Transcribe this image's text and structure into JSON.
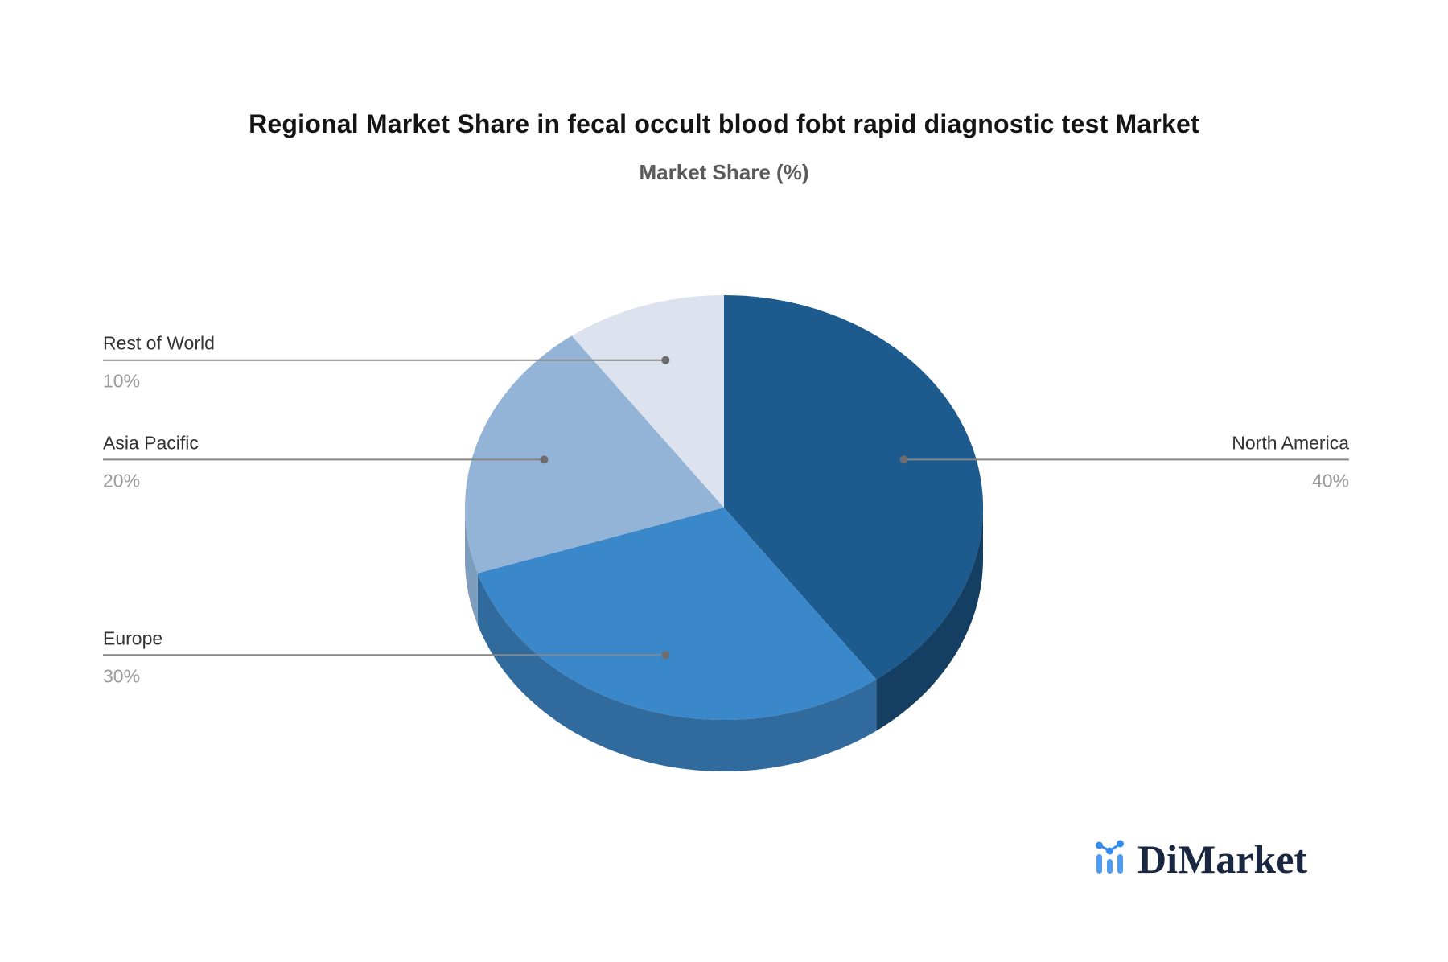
{
  "header": {
    "title": "Regional Market Share in fecal occult blood fobt rapid diagnostic test Market",
    "subtitle": "Market Share (%)"
  },
  "chart_data": {
    "type": "pie",
    "style": "3d-pie",
    "title": "Regional Market Share in fecal occult blood fobt rapid diagnostic test Market",
    "subtitle": "Market Share (%)",
    "unit": "%",
    "start_angle_deg": 0,
    "direction": "clockwise",
    "legend_position": "callout-labels",
    "slices": [
      {
        "label": "North America",
        "value": 40,
        "pct_label": "40%",
        "color": "#1d5b8f",
        "side_color": "#153e63",
        "label_side": "right"
      },
      {
        "label": "Europe",
        "value": 30,
        "pct_label": "30%",
        "color": "#3a87c9",
        "side_color": "#316a9c",
        "label_side": "left"
      },
      {
        "label": "Asia Pacific",
        "value": 20,
        "pct_label": "20%",
        "color": "#94b4d7",
        "side_color": "#7e9cbc",
        "label_side": "left"
      },
      {
        "label": "Rest of World",
        "value": 10,
        "pct_label": "10%",
        "color": "#dce3ee",
        "side_color": "#bcc8d9",
        "label_side": "left"
      }
    ]
  },
  "callout_style": {
    "line_color": "#878787",
    "dot_color": "#6d6d6d",
    "name_color": "#333333",
    "pct_color": "#9a9a9a"
  },
  "logo": {
    "text": "DiMarket",
    "icon": "bar-line-chart-icon",
    "text_color": "#1a2741",
    "icon_color": "#4e9df3"
  }
}
